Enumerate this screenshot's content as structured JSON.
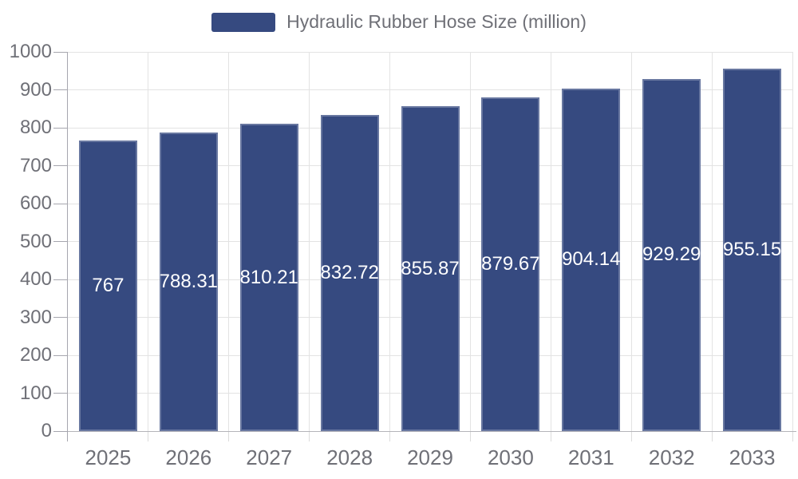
{
  "chart_data": {
    "type": "bar",
    "title": "",
    "legend": [
      "Hydraulic Rubber Hose Size (million)"
    ],
    "legend_position": "top-center",
    "categories": [
      "2025",
      "2026",
      "2027",
      "2028",
      "2029",
      "2030",
      "2031",
      "2032",
      "2033"
    ],
    "series": [
      {
        "name": "Hydraulic Rubber Hose Size (million)",
        "values": [
          767,
          788.31,
          810.21,
          832.72,
          855.87,
          879.67,
          904.14,
          929.29,
          955.15
        ]
      }
    ],
    "value_labels": [
      "767",
      "788.31",
      "810.21",
      "832.72",
      "855.87",
      "879.67",
      "904.14",
      "929.29",
      "955.15"
    ],
    "value_label_position": "inside-middle",
    "xlabel": "",
    "ylabel": "",
    "ylim": [
      0,
      1000
    ],
    "ytick_step": 100,
    "ytick_labels": [
      "0",
      "100",
      "200",
      "300",
      "400",
      "500",
      "600",
      "700",
      "800",
      "900",
      "1000"
    ],
    "grid": true,
    "colors": {
      "bar": "#364a80",
      "bar_value_label": "#ffffff",
      "axis_text": "#6f7077",
      "gridline": "#e3e3e3",
      "axis_line": "#a6a6ae",
      "x_tick": "#dcdcdc",
      "baseline": "#b4b4ba",
      "background": "#ffffff"
    }
  }
}
